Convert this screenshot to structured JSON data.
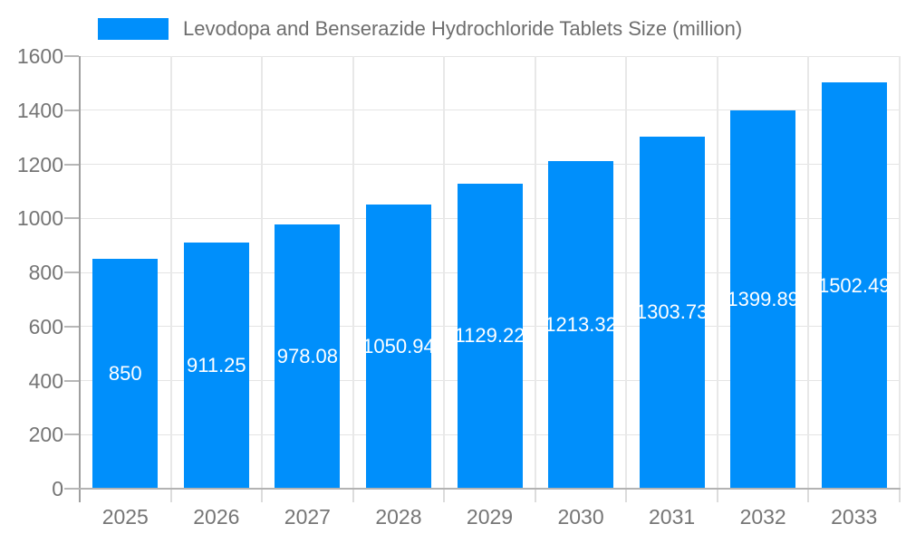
{
  "chart_data": {
    "type": "bar",
    "title": "",
    "legend_position": "top-left",
    "grid": true,
    "categories": [
      "2025",
      "2026",
      "2027",
      "2028",
      "2029",
      "2030",
      "2031",
      "2032",
      "2033"
    ],
    "series": [
      {
        "name": "Levodopa and Benserazide Hydrochloride Tablets Size (million)",
        "values": [
          850,
          911.25,
          978.08,
          1050.94,
          1129.22,
          1213.32,
          1303.73,
          1399.89,
          1502.49
        ]
      }
    ],
    "value_labels": [
      "850",
      "911.25",
      "978.08",
      "1050.94",
      "1129.22",
      "1213.32",
      "1303.73",
      "1399.89",
      "1502.49"
    ],
    "yticks": [
      "0",
      "200",
      "400",
      "600",
      "800",
      "1000",
      "1200",
      "1400",
      "1600"
    ],
    "ylim": [
      0,
      1600
    ],
    "xlabel": "",
    "ylabel": ""
  },
  "colors": {
    "bar": "#008FFB",
    "value_label_text": "#ffffff",
    "axis_text": "#757575",
    "legend_text": "#6e6e6e",
    "grid_h": "#e4e4e4",
    "grid_v": "#e8e8e8",
    "tick_y": "#b7b7b7",
    "tick_x": "#dcdcdc",
    "axis_line_y": "#9f9f9f",
    "axis_line_x": "#b3b3b3",
    "background": "#ffffff"
  }
}
